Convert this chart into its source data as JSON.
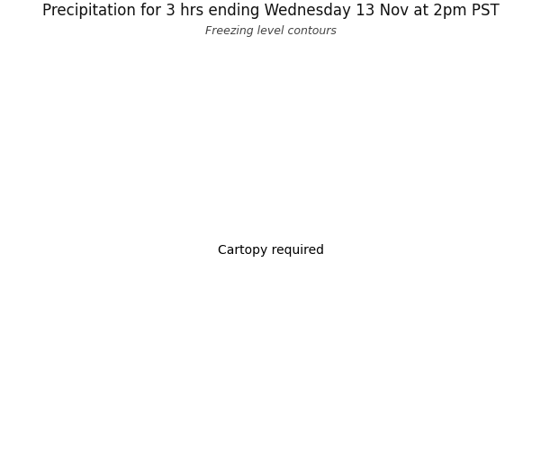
{
  "title": "Precipitation for 3 hrs ending Wednesday 13 Nov at 2pm PST",
  "subtitle": "Freezing level contours",
  "title_fontsize": 12,
  "subtitle_fontsize": 9,
  "background_color": "#ffffff",
  "ocean_color": "#c8d4ec",
  "land_color": "#9a9e9e",
  "border_color": "#222222",
  "contour_color": "#cc0000",
  "figsize": [
    6.01,
    5.13
  ],
  "dpi": 100,
  "extent": [
    108,
    132,
    3,
    27
  ],
  "contour_lw": 1.0
}
